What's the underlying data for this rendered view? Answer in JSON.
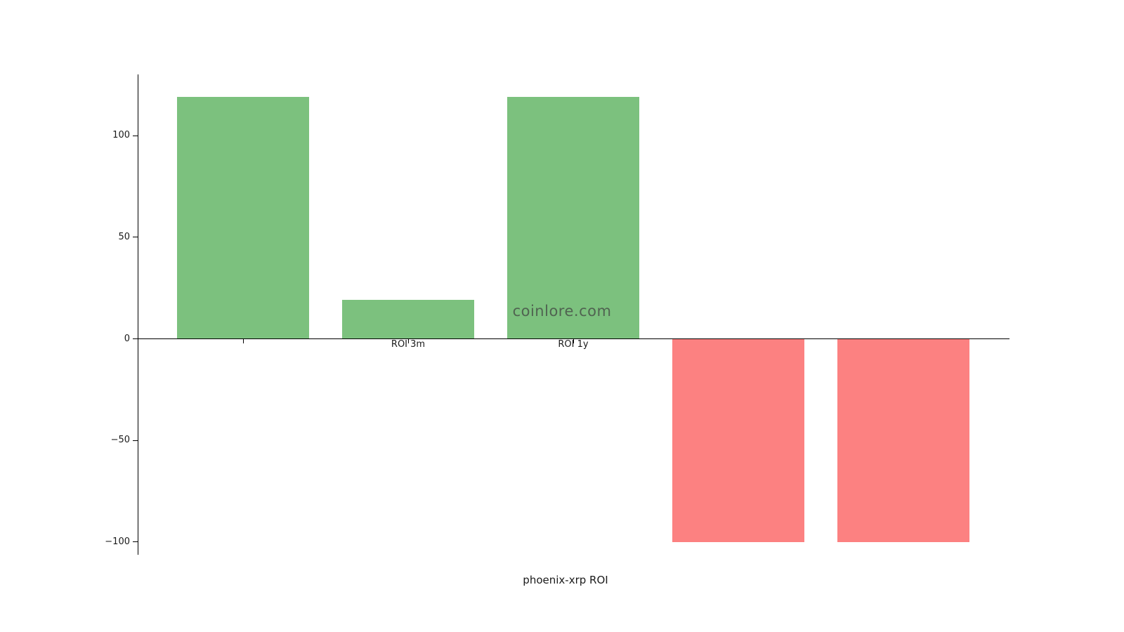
{
  "chart_data": {
    "type": "bar",
    "categories": [
      "",
      "ROI 3m",
      "ROI 1y",
      "",
      ""
    ],
    "values": [
      119,
      19,
      119,
      -100,
      -100
    ],
    "series": [
      {
        "name": "phoenix-xrp ROI",
        "values": [
          119,
          19,
          119,
          -100,
          -100
        ]
      }
    ],
    "bar_colors": [
      "#7cc17e",
      "#7cc17e",
      "#7cc17e",
      "#fc8181",
      "#fc8181"
    ],
    "positive_color": "#7cc17e",
    "negative_color": "#fc8181",
    "title": "phoenix-xrp ROI",
    "xlabel": "",
    "ylabel": "",
    "ylim": [
      -106.6,
      130.1
    ],
    "yticks": [
      100,
      50,
      0,
      -50,
      -100
    ],
    "ytick_labels": [
      "100",
      "50",
      "0",
      "−50",
      "−100"
    ],
    "xticks_visible": [
      true,
      true,
      true,
      false,
      false
    ],
    "grid": false,
    "legend": null,
    "axis_color": "#000000",
    "background": "#ffffff"
  },
  "watermark": {
    "text": "coinlore.com"
  },
  "footer": {
    "title": "phoenix-xrp ROI"
  }
}
